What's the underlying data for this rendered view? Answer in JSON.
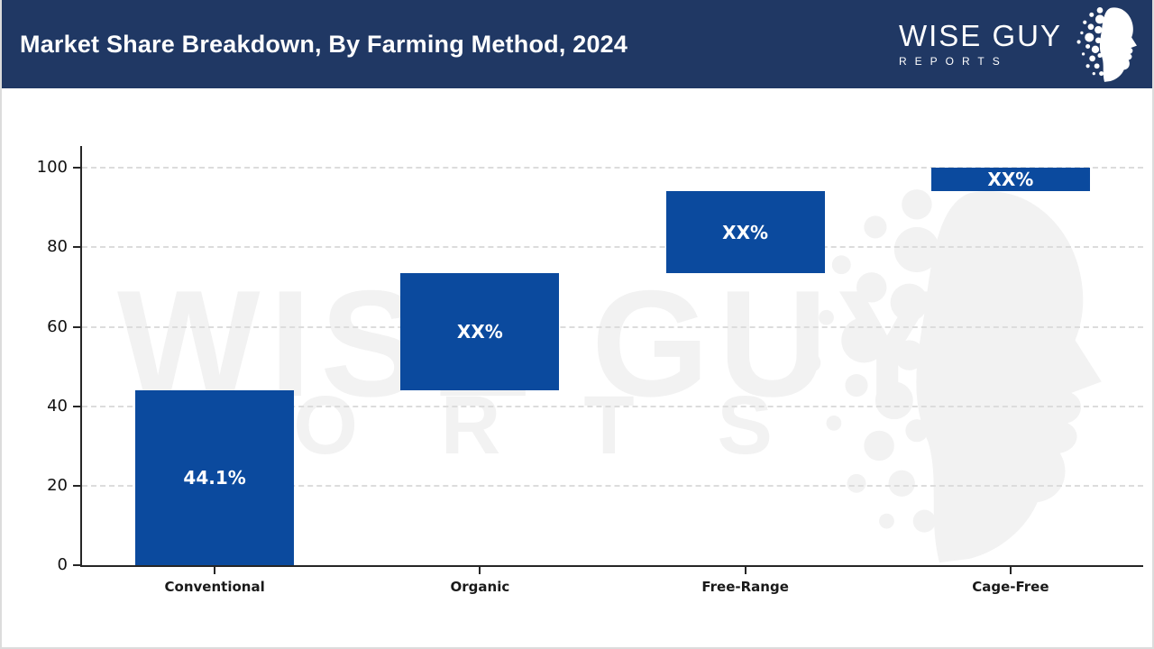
{
  "header": {
    "title": "Market Share Breakdown, By Farming Method, 2024"
  },
  "brand": {
    "name": "WISE GUY",
    "sub": "REPORTS"
  },
  "watermark": {
    "line1": "WISE GUY",
    "line2": "PORTS"
  },
  "colors": {
    "header_bg": "#203864",
    "bar": "#0b4a9e",
    "bar_label": "#ffffff",
    "gridline": "#dcdcdc",
    "axis": "#262626",
    "watermark": "#f2f2f2"
  },
  "chart_data": {
    "type": "bar",
    "subtype": "waterfall",
    "title": "Market Share Breakdown, By Farming Method, 2024",
    "xlabel": "",
    "ylabel": "",
    "categories": [
      "Conventional",
      "Organic",
      "Free-Range",
      "Cage-Free"
    ],
    "segments": [
      {
        "category": "Conventional",
        "start": 0,
        "end": 44.1,
        "label": "44.1%"
      },
      {
        "category": "Organic",
        "start": 44.1,
        "end": 73.5,
        "label": "XX%"
      },
      {
        "category": "Free-Range",
        "start": 73.5,
        "end": 94.1,
        "label": "XX%"
      },
      {
        "category": "Cage-Free",
        "start": 94.1,
        "end": 100,
        "label": "XX%"
      }
    ],
    "segment_sizes_pct": [
      44.1,
      29.4,
      20.6,
      5.9
    ],
    "yticks": [
      0,
      20,
      40,
      60,
      80,
      100
    ],
    "ylim": [
      0,
      105.5
    ],
    "grid": true,
    "grid_style": "dashed",
    "legend": false,
    "bar_color": "#0b4a9e",
    "bar_label_color": "#ffffff"
  }
}
